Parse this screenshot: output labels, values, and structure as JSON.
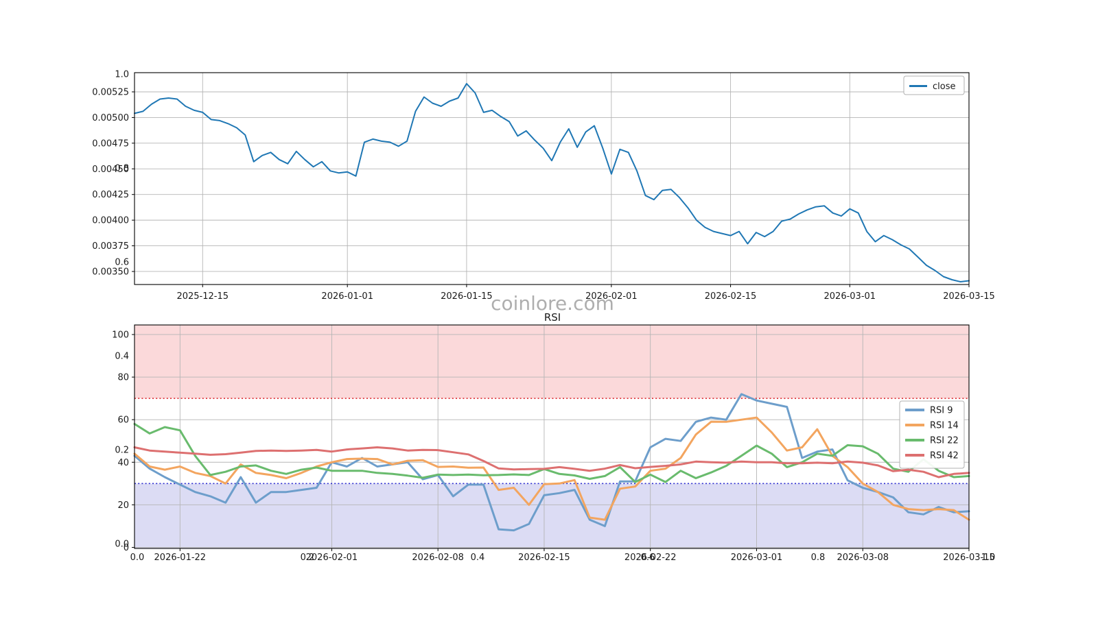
{
  "watermark": "coinlore.com",
  "colors": {
    "close_line": "#1f77b4",
    "rsi9": "#6d9ecb",
    "rsi14": "#f3a55f",
    "rsi22": "#69bb6d",
    "rsi42": "#dd7070",
    "overbought_band": "#fbd9da",
    "oversold_band": "#dcdcf4",
    "overbought_line": "#e03a40",
    "oversold_line": "#2e2ecf",
    "gridline": "#b5b5b5",
    "frame": "#000000",
    "legend_border": "#b0b0b0"
  },
  "ghost_axis": {
    "x_labels": [
      {
        "f": 0.0,
        "label": "0.0"
      },
      {
        "f": 0.2,
        "label": "0.2"
      },
      {
        "f": 0.4,
        "label": "0.4"
      },
      {
        "f": 0.6,
        "label": "0.6"
      },
      {
        "f": 0.8,
        "label": "0.8"
      },
      {
        "f": 1.0,
        "label": "1.0"
      }
    ],
    "y_labels": [
      {
        "f": 0.0,
        "label": "0.0"
      },
      {
        "f": 0.2,
        "label": "0.2"
      },
      {
        "f": 0.4,
        "label": "0.4"
      },
      {
        "f": 0.6,
        "label": "0.6"
      },
      {
        "f": 0.8,
        "label": "0.8"
      },
      {
        "f": 1.0,
        "label": "1.0"
      }
    ]
  },
  "chart_data": [
    {
      "type": "line",
      "name": "price-chart",
      "title": "",
      "legend_position": "upper right",
      "grid": true,
      "x_start": "2025-12-07",
      "x_end": "2026-03-15",
      "x_ticks": [
        "2025-12-15",
        "2026-01-01",
        "2026-01-15",
        "2026-02-01",
        "2026-02-15",
        "2026-03-01",
        "2026-03-15"
      ],
      "ylim": [
        0.003373,
        0.005437
      ],
      "y_ticks": [
        {
          "v": 0.0035,
          "label": "0.00350"
        },
        {
          "v": 0.00375,
          "label": "0.00375"
        },
        {
          "v": 0.004,
          "label": "0.00400"
        },
        {
          "v": 0.00425,
          "label": "0.00425"
        },
        {
          "v": 0.0045,
          "label": "0.00450"
        },
        {
          "v": 0.00475,
          "label": "0.00475"
        },
        {
          "v": 0.005,
          "label": "0.00500"
        },
        {
          "v": 0.00525,
          "label": "0.00525"
        }
      ],
      "series": [
        {
          "name": "close",
          "color": "#1f77b4",
          "width": 2,
          "values": [
            0.00504,
            0.00506,
            0.00513,
            0.00518,
            0.00519,
            0.00518,
            0.00511,
            0.00507,
            0.00505,
            0.00498,
            0.00497,
            0.00494,
            0.0049,
            0.00483,
            0.00457,
            0.00463,
            0.00466,
            0.00459,
            0.00455,
            0.00467,
            0.00459,
            0.00452,
            0.00457,
            0.00448,
            0.00446,
            0.00447,
            0.00443,
            0.00476,
            0.00479,
            0.00477,
            0.00476,
            0.00472,
            0.00477,
            0.00506,
            0.0052,
            0.00514,
            0.00511,
            0.00516,
            0.00519,
            0.00533,
            0.00524,
            0.00505,
            0.00507,
            0.00501,
            0.00496,
            0.00482,
            0.00487,
            0.00478,
            0.0047,
            0.00458,
            0.00476,
            0.00489,
            0.00471,
            0.00486,
            0.00492,
            0.0047,
            0.00445,
            0.00469,
            0.00466,
            0.00448,
            0.00424,
            0.0042,
            0.00429,
            0.0043,
            0.00422,
            0.00412,
            0.004,
            0.00393,
            0.00389,
            0.00387,
            0.00385,
            0.00389,
            0.00377,
            0.00388,
            0.00384,
            0.00389,
            0.00399,
            0.00401,
            0.00406,
            0.0041,
            0.00413,
            0.00414,
            0.00407,
            0.00404,
            0.00411,
            0.00407,
            0.00389,
            0.00379,
            0.00385,
            0.00381,
            0.00376,
            0.00372,
            0.00364,
            0.00356,
            0.00351,
            0.00345,
            0.00342,
            0.0034,
            0.00341
          ]
        }
      ]
    },
    {
      "type": "line",
      "name": "rsi-chart",
      "title": "RSI",
      "legend_position": "right",
      "grid": true,
      "x_start": "2026-01-19",
      "x_end": "2026-03-15",
      "x_ticks": [
        "2026-01-22",
        "2026-02-01",
        "2026-02-08",
        "2026-02-15",
        "2026-02-22",
        "2026-03-01",
        "2026-03-08",
        "2026-03-15"
      ],
      "ylim": [
        -0.5,
        104.5
      ],
      "y_ticks": [
        {
          "v": 0,
          "label": "0"
        },
        {
          "v": 20,
          "label": "20"
        },
        {
          "v": 40,
          "label": "40"
        },
        {
          "v": 60,
          "label": "60"
        },
        {
          "v": 80,
          "label": "80"
        },
        {
          "v": 100,
          "label": "100"
        }
      ],
      "bands": [
        {
          "name": "overbought-band",
          "from": 70,
          "to": 104.5,
          "color": "#fbd9da"
        },
        {
          "name": "oversold-band",
          "from": -0.5,
          "to": 30,
          "color": "#dcdcf4"
        }
      ],
      "hlines": [
        {
          "name": "overbought-threshold",
          "v": 70,
          "color": "#e03a40"
        },
        {
          "name": "oversold-threshold",
          "v": 30,
          "color": "#2e2ecf"
        }
      ],
      "series": [
        {
          "name": "RSI 9",
          "color": "#6d9ecb",
          "width": 3,
          "values": [
            43,
            37,
            33,
            29.5,
            26,
            24,
            21,
            33,
            21,
            26,
            26,
            27,
            28,
            40,
            38,
            42,
            38,
            39,
            40,
            32,
            34,
            24,
            29.5,
            29.5,
            8.5,
            8,
            11,
            24.5,
            25.5,
            27,
            13,
            10,
            31,
            31,
            47,
            51,
            50,
            59,
            61,
            60,
            72,
            69,
            67.5,
            66,
            42,
            45,
            46,
            31.5,
            28,
            26,
            23.5,
            16.5,
            15.5,
            19,
            16.5,
            17
          ]
        },
        {
          "name": "RSI 14",
          "color": "#f3a55f",
          "width": 3,
          "values": [
            44,
            38,
            36.5,
            38,
            35,
            33.5,
            30,
            39,
            35,
            34,
            32.5,
            35,
            38,
            40,
            41.5,
            41.7,
            41.5,
            39,
            40.7,
            41,
            37.8,
            38,
            37.4,
            37.5,
            27,
            28,
            20,
            29.7,
            30,
            31.6,
            14,
            13,
            27.6,
            28.6,
            36,
            37,
            42,
            53,
            59,
            59,
            60,
            61,
            54,
            45.5,
            47,
            55.5,
            43,
            37.7,
            30,
            26,
            20,
            18,
            17.5,
            18,
            17.5,
            13
          ]
        },
        {
          "name": "RSI 22",
          "color": "#69bb6d",
          "width": 3,
          "values": [
            58,
            53.5,
            56.5,
            55,
            43,
            34,
            35.5,
            38,
            38.5,
            36,
            34.5,
            36.5,
            37.5,
            36,
            36,
            36,
            35,
            34.5,
            33.7,
            32.7,
            34.2,
            34,
            34.2,
            33.9,
            34,
            34.3,
            34,
            36.8,
            34.5,
            33.8,
            32.2,
            33.5,
            37.7,
            30.7,
            34.2,
            30.7,
            36,
            32.5,
            35.2,
            38.3,
            43,
            47.8,
            44,
            37.7,
            40,
            44,
            43,
            48,
            47.5,
            44,
            37,
            35.5,
            41.4,
            36,
            33,
            33.5
          ]
        },
        {
          "name": "RSI 42",
          "color": "#dd7070",
          "width": 3,
          "values": [
            47,
            45.5,
            45,
            44.5,
            44,
            43.5,
            43.8,
            44.5,
            45.3,
            45.5,
            45.3,
            45.5,
            45.8,
            45,
            46,
            46.5,
            47,
            46.5,
            45.5,
            45.8,
            45.7,
            44.7,
            43.7,
            40.6,
            37.1,
            36.6,
            36.8,
            36.9,
            37.7,
            36.9,
            36,
            37,
            38.7,
            37.2,
            37.8,
            38.3,
            39,
            40.3,
            40,
            39.8,
            40.3,
            40,
            40,
            39.5,
            39.5,
            39.8,
            39.5,
            40.3,
            39.8,
            38.5,
            35.8,
            36.5,
            35.5,
            33,
            34.5,
            35
          ]
        }
      ]
    }
  ]
}
